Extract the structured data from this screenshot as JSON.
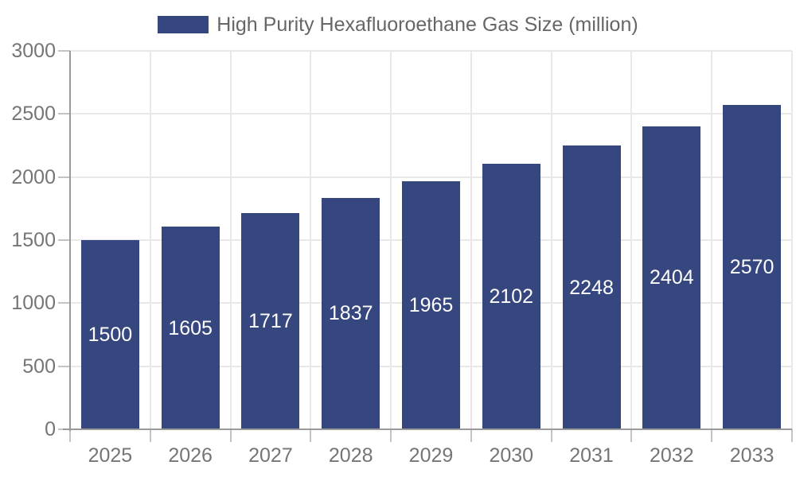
{
  "legend": {
    "label": "High Purity Hexafluoroethane Gas Size (million)"
  },
  "chart_data": {
    "type": "bar",
    "title": "High Purity Hexafluoroethane Gas Size (million)",
    "xlabel": "",
    "ylabel": "",
    "categories": [
      "2025",
      "2026",
      "2027",
      "2028",
      "2029",
      "2030",
      "2031",
      "2032",
      "2033"
    ],
    "values": [
      1500,
      1605,
      1717,
      1837,
      1965,
      2102,
      2248,
      2404,
      2570
    ],
    "bar_labels": [
      "1500",
      "1605",
      "1717",
      "1837",
      "1965",
      "2102",
      "2248",
      "2404",
      "2570"
    ],
    "ylim": [
      0,
      3000
    ],
    "yticks": [
      0,
      500,
      1000,
      1500,
      2000,
      2500,
      3000
    ],
    "ytick_labels": [
      "0",
      "500",
      "1000",
      "1500",
      "2000",
      "2500",
      "3000"
    ],
    "grid": true,
    "legend_position": "top",
    "colors": {
      "bar": "#36467e",
      "bar_label": "#ffffff",
      "axis_label": "#757575",
      "legend_text": "#666666",
      "axis_line": "#9a9a9a",
      "tick": "#c4c4c4",
      "gridline": "#e8e8e8"
    }
  }
}
